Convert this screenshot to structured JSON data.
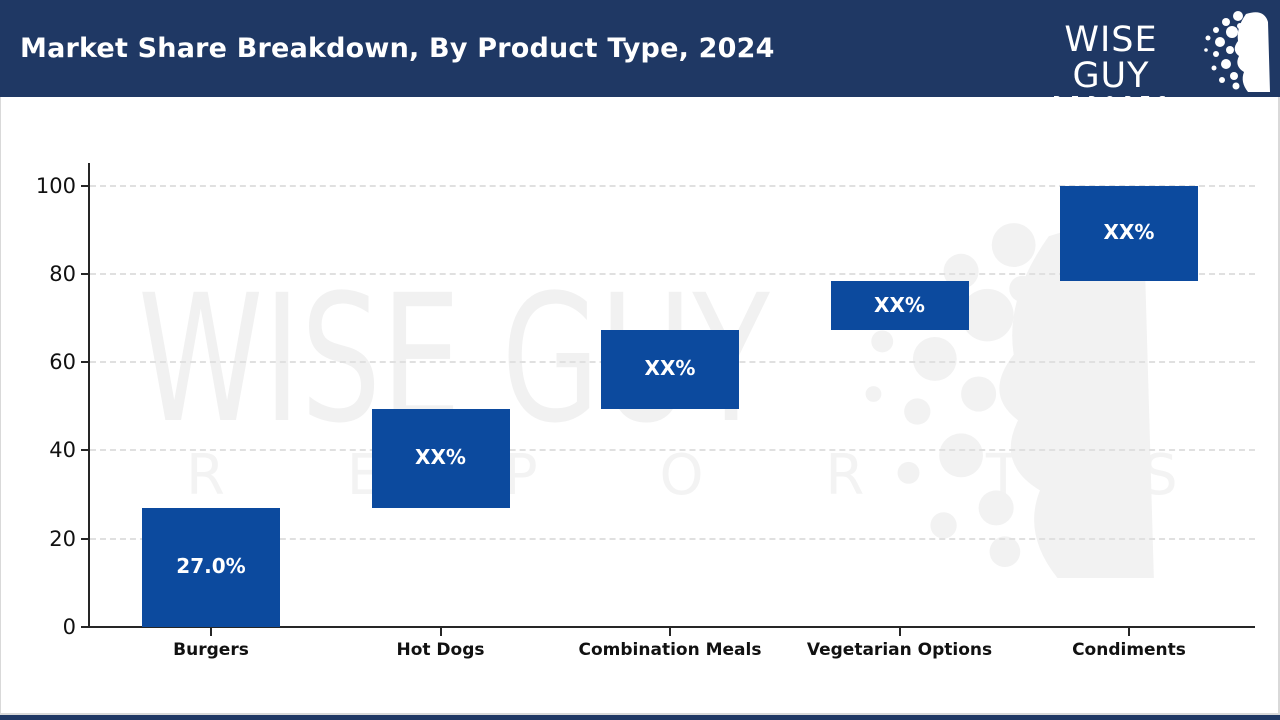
{
  "header": {
    "title": "Market Share Breakdown, By Product Type, 2024",
    "logo": {
      "line1": "WISE GUY",
      "line2": "REPORTS"
    }
  },
  "watermark": {
    "line1": "WISE GUY",
    "line2": "R E P O R T S"
  },
  "colors": {
    "header_bg": "#1f3864",
    "footer_bar": "#1f3864",
    "bar": "#0c4a9e",
    "bar_label": "#ffffff",
    "grid": "#e0e0e0",
    "axis": "#262626",
    "watermark": "#f1f1f1"
  },
  "chart_data": {
    "type": "bar",
    "subtype": "waterfall",
    "title": "Market Share Breakdown, By Product Type, 2024",
    "xlabel": "",
    "ylabel": "",
    "ylim": [
      0,
      105
    ],
    "yticks": [
      0,
      20,
      40,
      60,
      80,
      100
    ],
    "grid": "horizontal dashed",
    "legend": "none",
    "categories": [
      "Burgers",
      "Hot Dogs",
      "Combination Meals",
      "Vegetarian Options",
      "Condiments"
    ],
    "segments": [
      {
        "category": "Burgers",
        "start": 0,
        "end": 27.0,
        "value": 27.0,
        "bar_label": "27.0%"
      },
      {
        "category": "Hot Dogs",
        "start": 27.0,
        "end": 49.5,
        "value": 22.5,
        "bar_label": "XX%"
      },
      {
        "category": "Combination Meals",
        "start": 49.5,
        "end": 67.2,
        "value": 17.7,
        "bar_label": "XX%"
      },
      {
        "category": "Vegetarian Options",
        "start": 67.2,
        "end": 78.4,
        "value": 11.2,
        "bar_label": "XX%"
      },
      {
        "category": "Condiments",
        "start": 78.4,
        "end": 100.0,
        "value": 21.6,
        "bar_label": "XX%"
      }
    ]
  }
}
